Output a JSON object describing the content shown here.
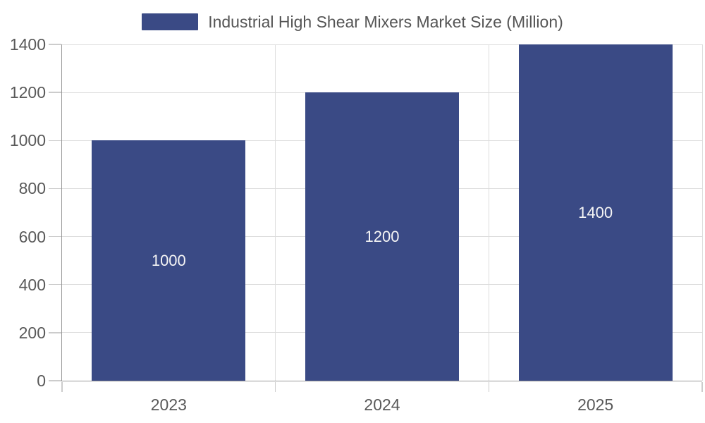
{
  "legend": {
    "label": "Industrial High Shear Mixers Market Size (Million)"
  },
  "chart_data": {
    "type": "bar",
    "title": "Industrial High Shear Mixers Market Size (Million)",
    "categories": [
      "2023",
      "2024",
      "2025"
    ],
    "values": [
      1000,
      1200,
      1400
    ],
    "value_labels": [
      "1000",
      "1200",
      "1400"
    ],
    "xlabel": "",
    "ylabel": "",
    "ylim": [
      0,
      1400
    ],
    "ytick_step": 200,
    "ytick_labels": [
      "0",
      "200",
      "400",
      "600",
      "800",
      "1000",
      "1200",
      "1400"
    ],
    "grid": true,
    "legend_position": "top-center",
    "bar_width_fraction": 0.72
  },
  "colors": {
    "bar": "#3A4A85",
    "grid": "#DDDDDD",
    "axis": "#999999",
    "tick": "#CCCCCC",
    "text": "#595959",
    "legend_text": "#555555",
    "value_label": "#F5F5F5",
    "background": "#FFFFFF"
  }
}
